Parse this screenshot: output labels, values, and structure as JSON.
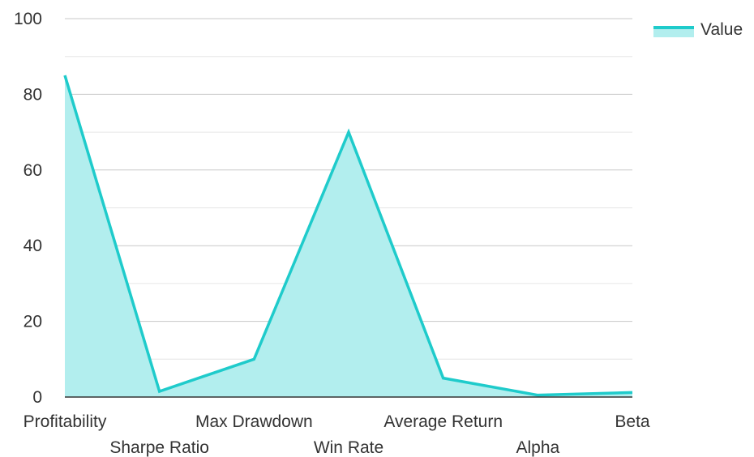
{
  "chart_data": {
    "type": "area",
    "categories": [
      "Profitability",
      "Sharpe Ratio",
      "Max Drawdown",
      "Win Rate",
      "Average Return",
      "Alpha",
      "Beta"
    ],
    "series": [
      {
        "name": "Value",
        "values": [
          85,
          1.5,
          10,
          70,
          5,
          0.5,
          1.2
        ],
        "color": "#1fcbcb",
        "fill": "#b2eeee"
      }
    ],
    "ylim": [
      0,
      100
    ],
    "yticks": [
      0,
      20,
      40,
      60,
      80,
      100
    ],
    "minor_grid": true,
    "legend": "top-right",
    "xlabel": "",
    "ylabel": "",
    "title": ""
  }
}
